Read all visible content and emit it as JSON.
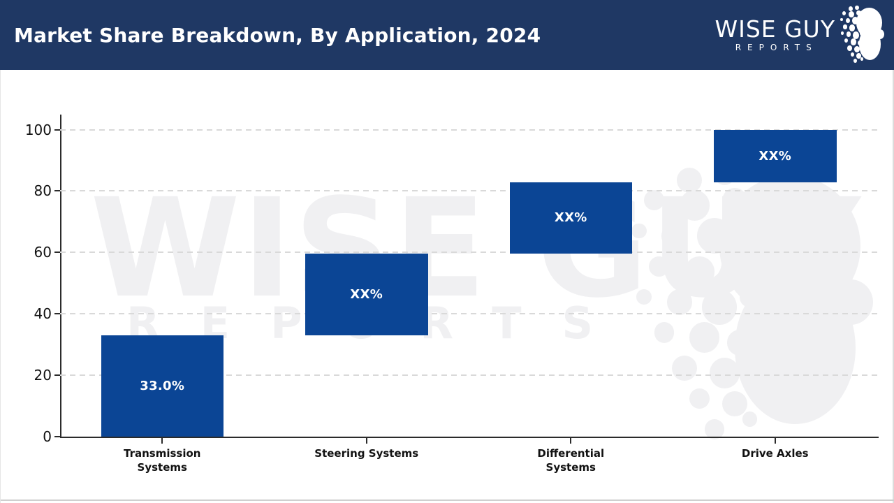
{
  "header": {
    "title": "Market Share Breakdown, By Application, 2024",
    "logo": {
      "line1": "WISE GUY",
      "line2": "REPORTS"
    }
  },
  "watermark": {
    "line1": "WISE GUY",
    "line2": "REPORTS"
  },
  "colors": {
    "header_bg": "#1f3864",
    "bar": "#0b4595",
    "bar_label": "#ffffff",
    "grid": "#d9d9d9",
    "axis": "#2b2b2b",
    "tick_text": "#111111",
    "watermark": "#f0f0f2"
  },
  "chart_data": {
    "type": "bar",
    "subtype": "waterfall",
    "title": "Market Share Breakdown, By Application, 2024",
    "categories": [
      "Transmission Systems",
      "Steering Systems",
      "Differential Systems",
      "Drive Axles"
    ],
    "category_label_lines": [
      [
        "Transmission",
        "Systems"
      ],
      [
        "Steering Systems"
      ],
      [
        "Differential",
        "Systems"
      ],
      [
        "Drive Axles"
      ]
    ],
    "segments": [
      {
        "category": "Transmission Systems",
        "start": 0,
        "end": 33,
        "label": "33.0%"
      },
      {
        "category": "Steering Systems",
        "start": 33,
        "end": 59.7,
        "label": "XX%"
      },
      {
        "category": "Differential Systems",
        "start": 59.7,
        "end": 82.9,
        "label": "XX%"
      },
      {
        "category": "Drive Axles",
        "start": 82.9,
        "end": 100,
        "label": "XX%"
      }
    ],
    "ylim": [
      0,
      100
    ],
    "yticks": [
      0,
      20,
      40,
      60,
      80,
      100
    ],
    "xlabel": "",
    "ylabel": "",
    "grid": "horizontal-dashed",
    "legend": "none",
    "bar_width_fraction": 0.6
  }
}
